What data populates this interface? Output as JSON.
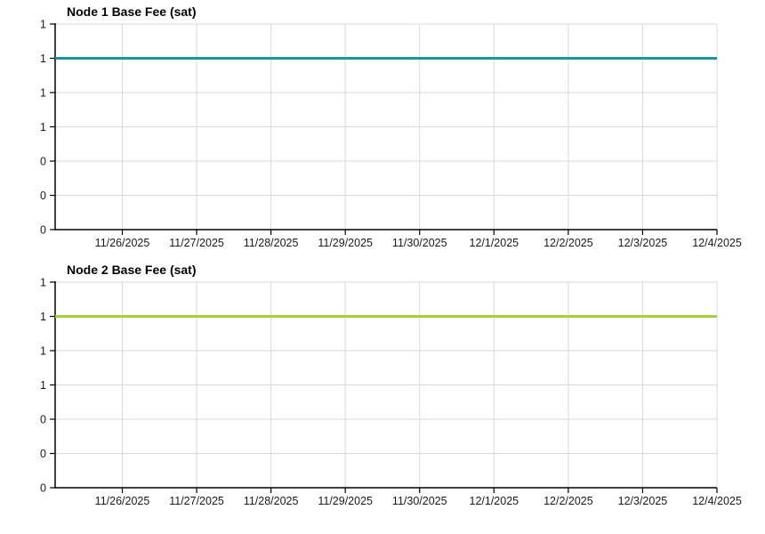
{
  "colors": {
    "background": "#ffffff",
    "axis": "#000000",
    "gridline": "#d9d9d9",
    "tick_label": "#1a1a1a",
    "title": "#000000",
    "node1_line": "#1897a2",
    "node2_line": "#a6cf39"
  },
  "chart_data": [
    {
      "type": "line",
      "title": "Node 1 Base Fee (sat)",
      "x": [
        "11/26/2025",
        "11/27/2025",
        "11/28/2025",
        "11/29/2025",
        "11/30/2025",
        "12/1/2025",
        "12/2/2025",
        "12/3/2025",
        "12/4/2025"
      ],
      "series": [
        {
          "name": "Node 1 Base Fee (sat)",
          "color": "#1897a2",
          "values": [
            1,
            1,
            1,
            1,
            1,
            1,
            1,
            1,
            1
          ]
        }
      ],
      "ylim": [
        0,
        1.2
      ],
      "y_ticks": [
        1.2,
        1.0,
        0.8,
        0.6,
        0.4,
        0.2,
        0
      ],
      "y_tick_labels": [
        "1",
        "1",
        "1",
        "1",
        "0",
        "0",
        "0"
      ],
      "xlabel": "",
      "ylabel": "",
      "grid": true,
      "legend": "none"
    },
    {
      "type": "line",
      "title": "Node 2 Base Fee (sat)",
      "x": [
        "11/26/2025",
        "11/27/2025",
        "11/28/2025",
        "11/29/2025",
        "11/30/2025",
        "12/1/2025",
        "12/2/2025",
        "12/3/2025",
        "12/4/2025"
      ],
      "series": [
        {
          "name": "Node 2 Base Fee (sat)",
          "color": "#a6cf39",
          "values": [
            1,
            1,
            1,
            1,
            1,
            1,
            1,
            1,
            1
          ]
        }
      ],
      "ylim": [
        0,
        1.2
      ],
      "y_ticks": [
        1.2,
        1.0,
        0.8,
        0.6,
        0.4,
        0.2,
        0
      ],
      "y_tick_labels": [
        "1",
        "1",
        "1",
        "1",
        "0",
        "0",
        "0"
      ],
      "xlabel": "",
      "ylabel": "",
      "grid": true,
      "legend": "none"
    }
  ]
}
